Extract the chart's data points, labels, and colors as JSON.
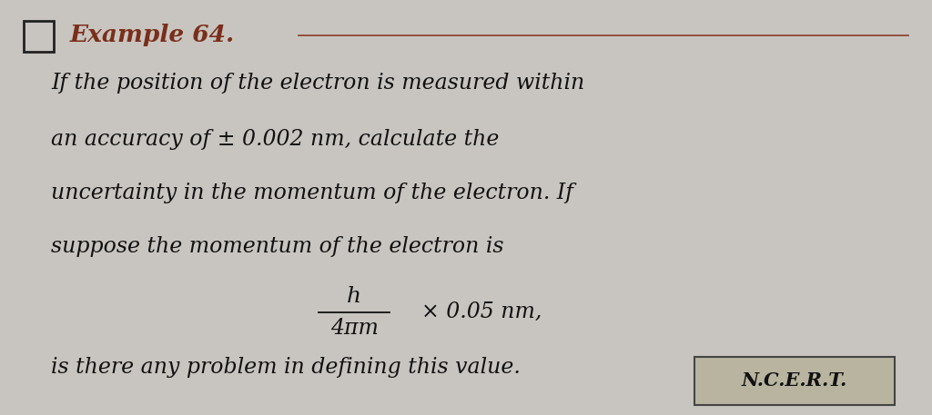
{
  "background_color": "#c8c5c0",
  "title": "Example 64.",
  "title_color": "#7a2e1a",
  "title_fontsize": 19,
  "checkbox_color": "#222222",
  "line_color": "#8b3a2a",
  "body_text_color": "#111111",
  "body_fontsize": 17,
  "formula_fontsize": 17,
  "ncert_fontsize": 15,
  "ncert_bg": "#b8b4a0",
  "ncert_text": "N.C.E.R.T.",
  "line1": "If the position of the electron is measured within",
  "line2": "an accuracy of ± 0.002 nm, calculate the",
  "line3": "uncertainty in the momentum of the electron. If",
  "line4": "suppose the momentum of the electron is",
  "formula_num": "h",
  "formula_den": "4πm",
  "formula_suffix": "× 0.05 nm,",
  "last_line": "is there any problem in defining this value."
}
